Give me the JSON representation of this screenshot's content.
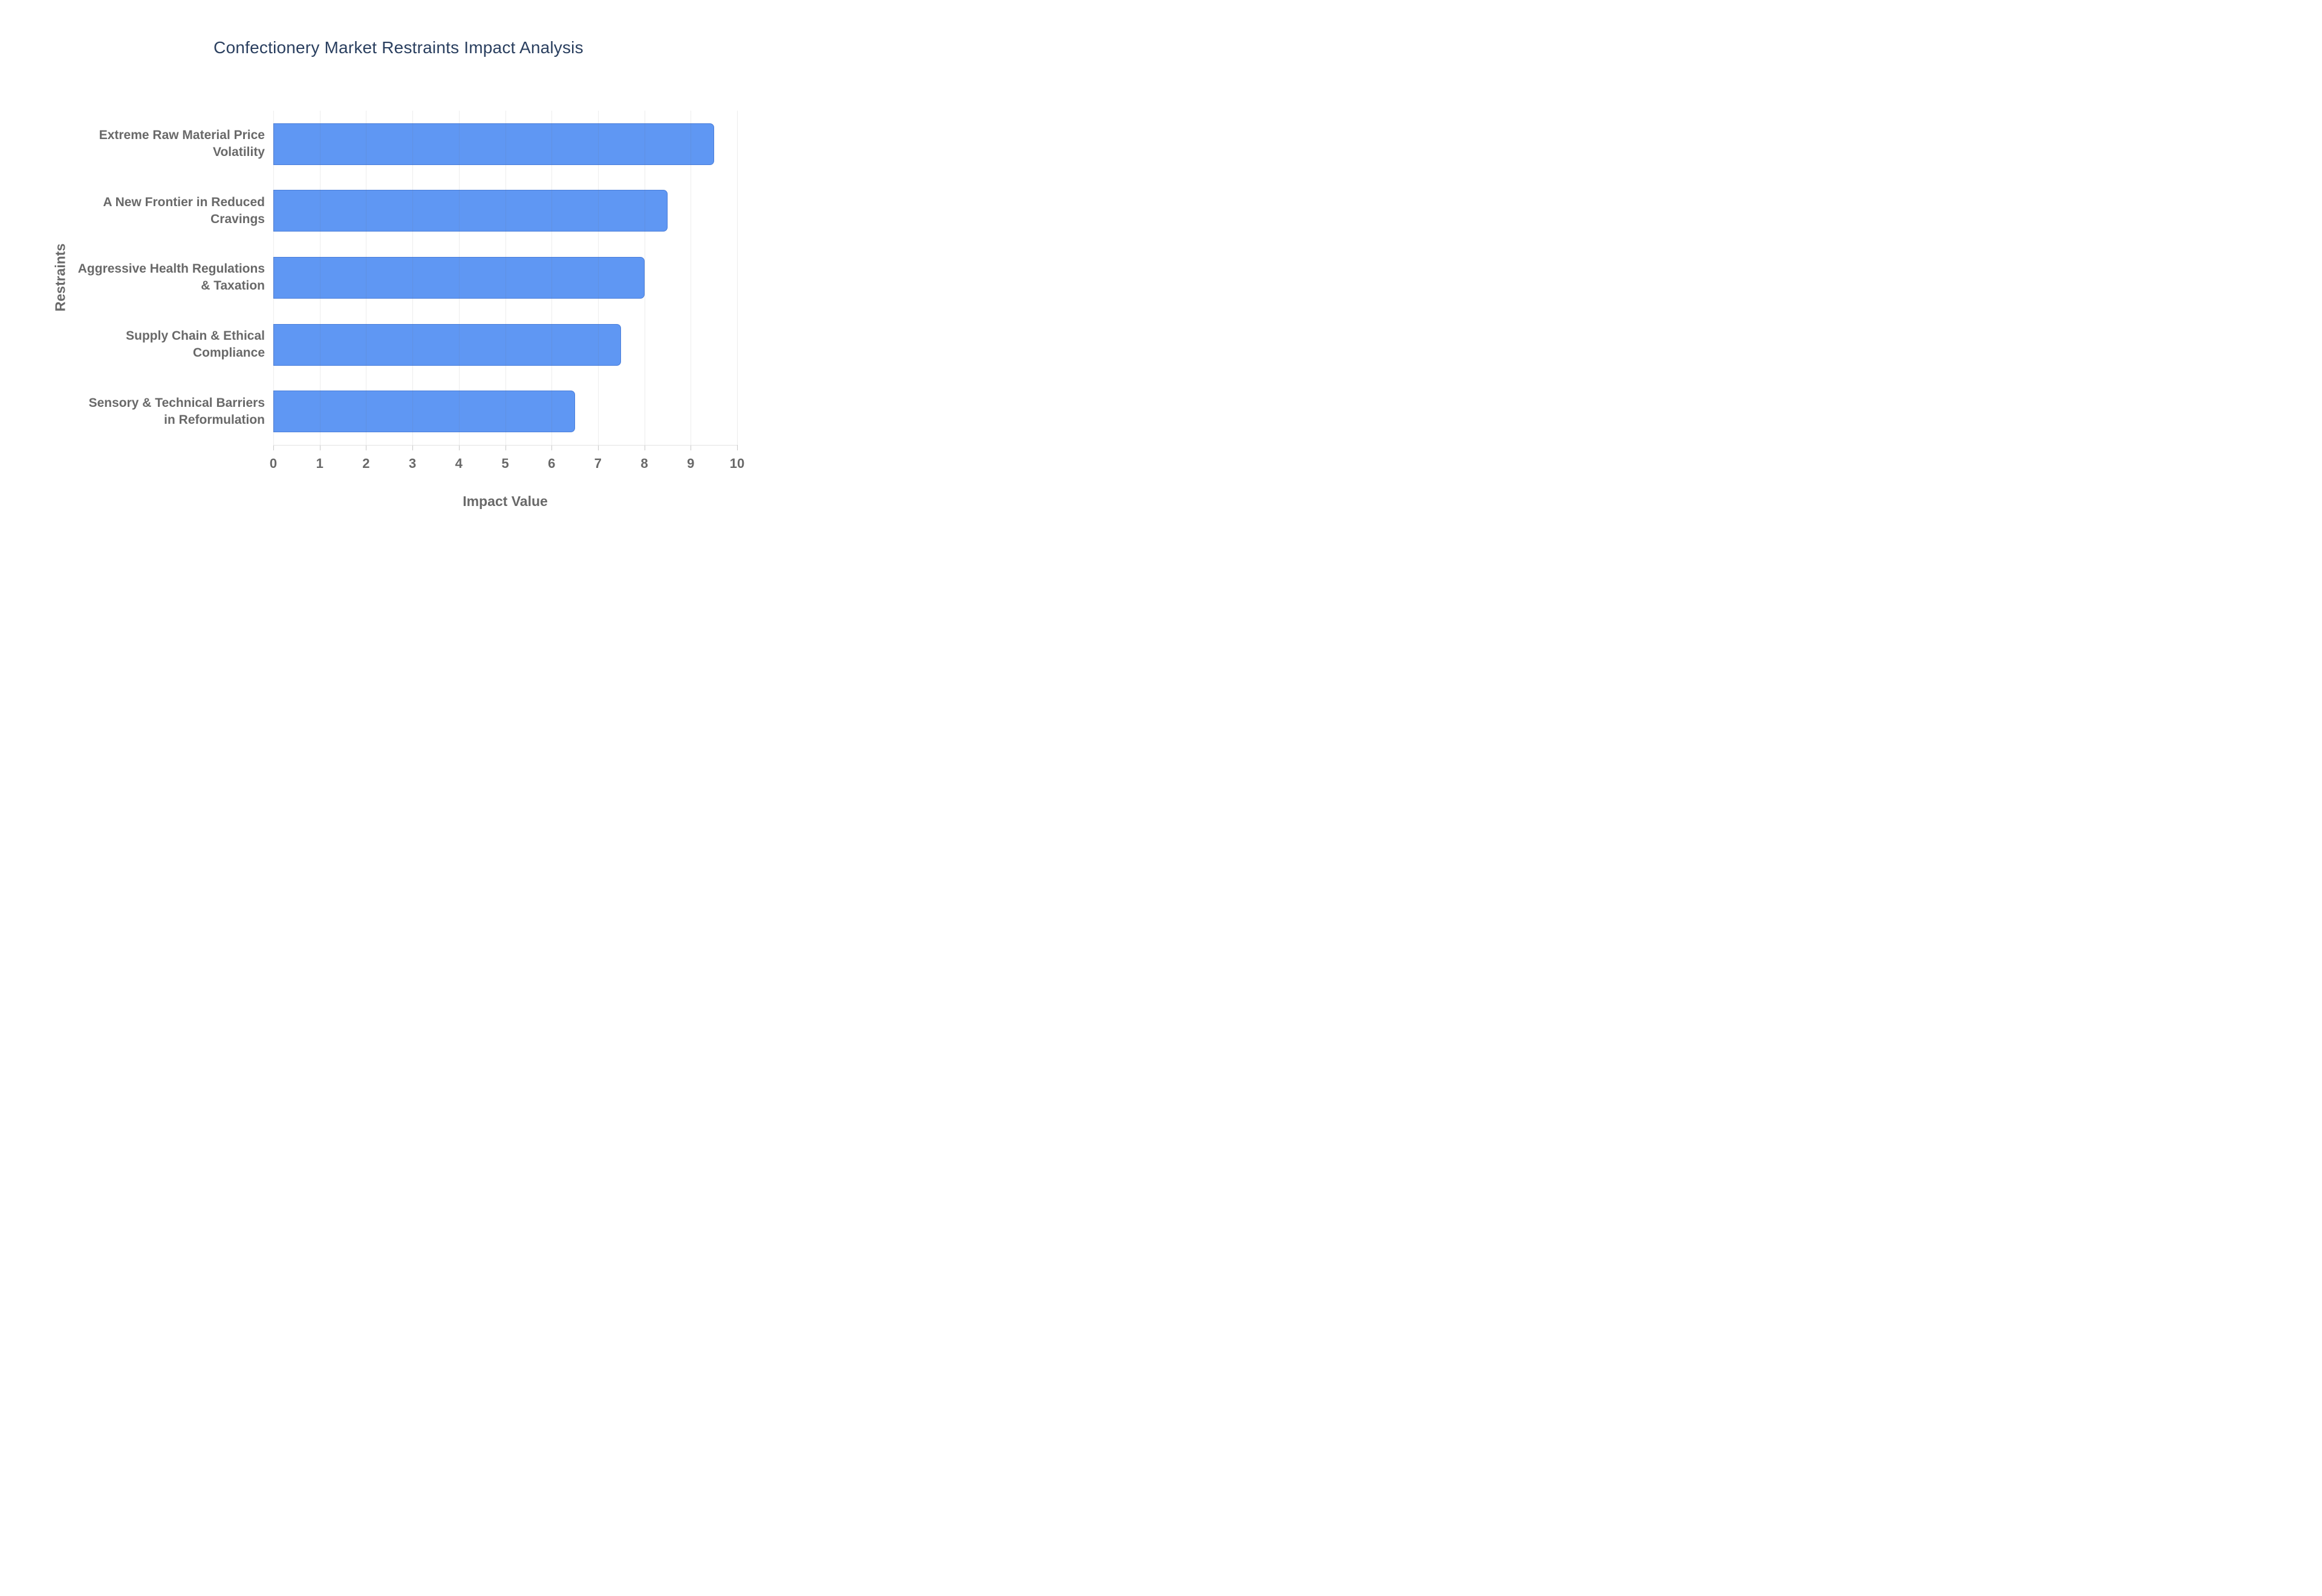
{
  "page": {
    "background": "#ffffff"
  },
  "title": {
    "text": "Confectionery Market Restraints Impact Analysis",
    "color": "#2a3f5f"
  },
  "axes": {
    "x_title": "Impact Value",
    "y_title": "Restraints",
    "x_ticks": [
      0,
      1,
      2,
      3,
      4,
      5,
      6,
      7,
      8,
      9,
      10
    ],
    "label_color": "#696969",
    "grid_color": "#e9e9e9",
    "grid_overlay_color": "rgba(110,110,110,0.12)",
    "axis_line_color": "#e2e2e2",
    "tick_mark_color": "#c8c8c8"
  },
  "chart_data": {
    "type": "bar",
    "orientation": "horizontal",
    "title": "Confectionery Market Restraints Impact Analysis",
    "categories": [
      "Extreme Raw Material Price Volatility",
      "A New Frontier in Reduced Cravings",
      "Aggressive Health Regulations & Taxation",
      "Supply Chain & Ethical Compliance",
      "Sensory & Technical Barriers in Reformulation"
    ],
    "category_display": [
      "Extreme Raw Material Price\nVolatility",
      "A New Frontier in Reduced\nCravings",
      "Aggressive Health Regulations\n& Taxation",
      "Supply Chain & Ethical\nCompliance",
      "Sensory & Technical Barriers\nin Reformulation"
    ],
    "values": [
      9.5,
      8.5,
      8.0,
      7.5,
      6.5
    ],
    "xlabel": "Impact Value",
    "ylabel": "Restraints",
    "xlim": [
      0,
      10
    ],
    "grid": "vertical-only",
    "legend": "none",
    "bar_color": "#5f97f3",
    "bar_border_color": "rgba(47,94,187,0.45)"
  }
}
